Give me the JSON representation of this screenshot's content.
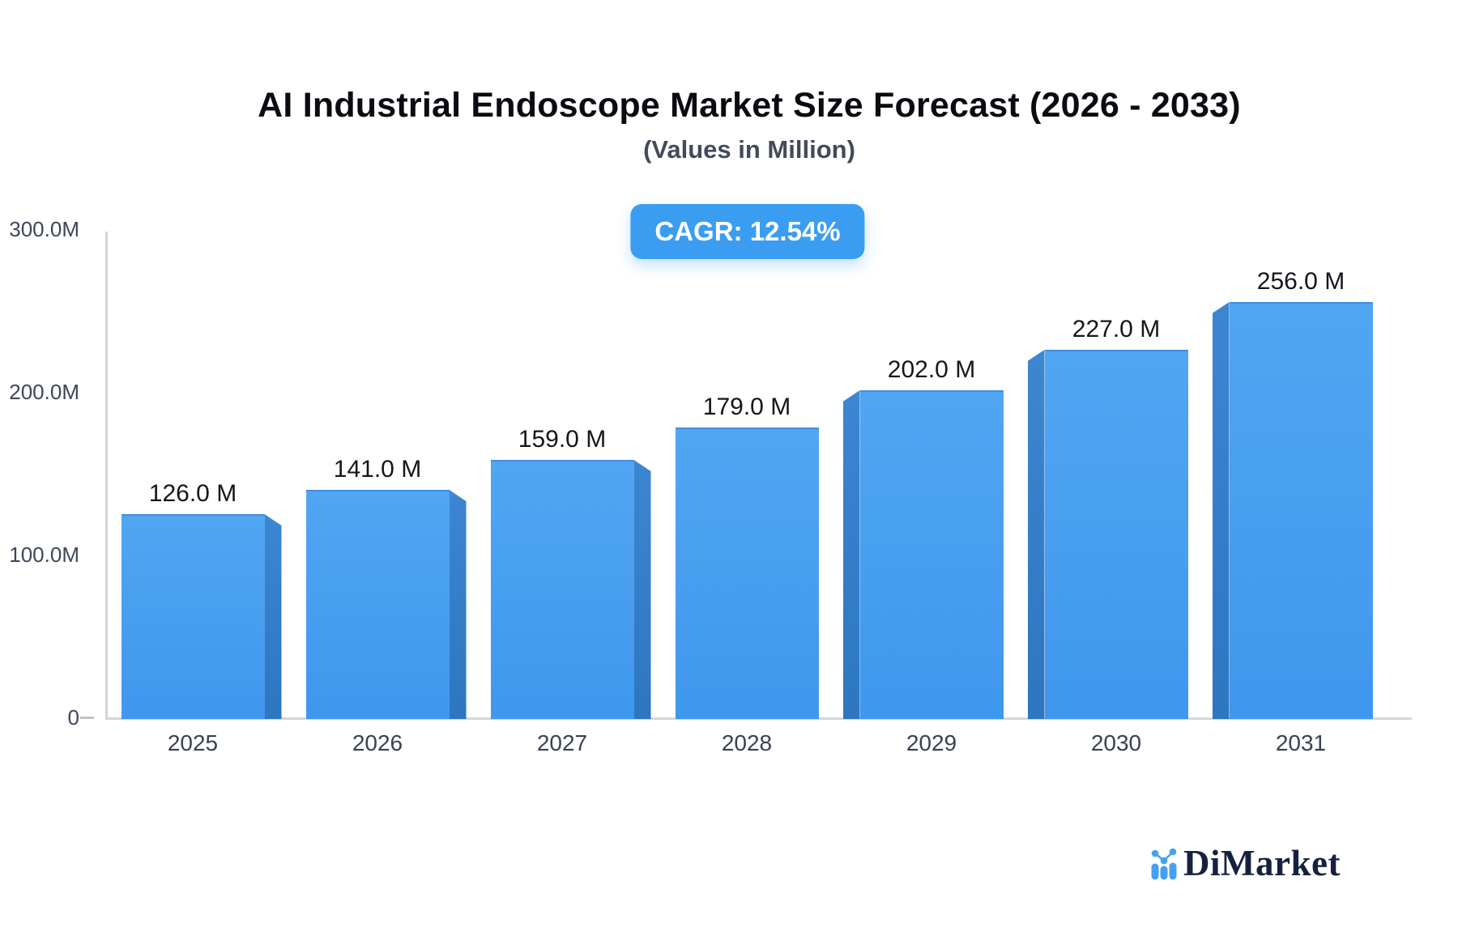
{
  "header": {
    "title": "AI Industrial Endoscope Market Size Forecast (2026 - 2033)",
    "subtitle": "(Values in Million)"
  },
  "badge": {
    "label": "CAGR: 12.54%",
    "bg_color": "#3B9DF1",
    "text_color": "#FFFFFF"
  },
  "chart_data": {
    "type": "bar",
    "title": "AI Industrial Endoscope Market Size Forecast (2026 - 2033)",
    "subtitle": "(Values in Million)",
    "categories": [
      "2025",
      "2026",
      "2027",
      "2028",
      "2029",
      "2030",
      "2031"
    ],
    "values": [
      126.0,
      141.0,
      159.0,
      179.0,
      202.0,
      227.0,
      256.0
    ],
    "bar_labels": [
      "126.0 M",
      "141.0 M",
      "159.0 M",
      "179.0 M",
      "202.0 M",
      "227.0 M",
      "256.0 M"
    ],
    "unit": "Million",
    "xlabel": "",
    "ylabel": "",
    "ylim": [
      0,
      300
    ],
    "y_ticks": [
      {
        "label": "300.0M",
        "value": 300
      },
      {
        "label": "200.0M",
        "value": 200
      },
      {
        "label": "100.0M",
        "value": 100
      },
      {
        "label": "0",
        "value": 0
      }
    ],
    "grid": false,
    "legend": false,
    "style_3d": true,
    "bar_face_color_top": "#51A6F2",
    "bar_face_color_bottom": "#3F97EE",
    "bar_face_edge_color": "#3E8EE0",
    "bar_side_color_top": "#3C86D2",
    "bar_side_color_bottom": "#2D76C0",
    "axis_color": "#D3D6DB",
    "value_label_color": "#15161B",
    "tick_label_color": "#3D4659"
  },
  "logo": {
    "text": "DiMarket",
    "icon": "bar-line-chart-icon",
    "icon_color": "#45A0F0",
    "text_color": "#15223F"
  }
}
